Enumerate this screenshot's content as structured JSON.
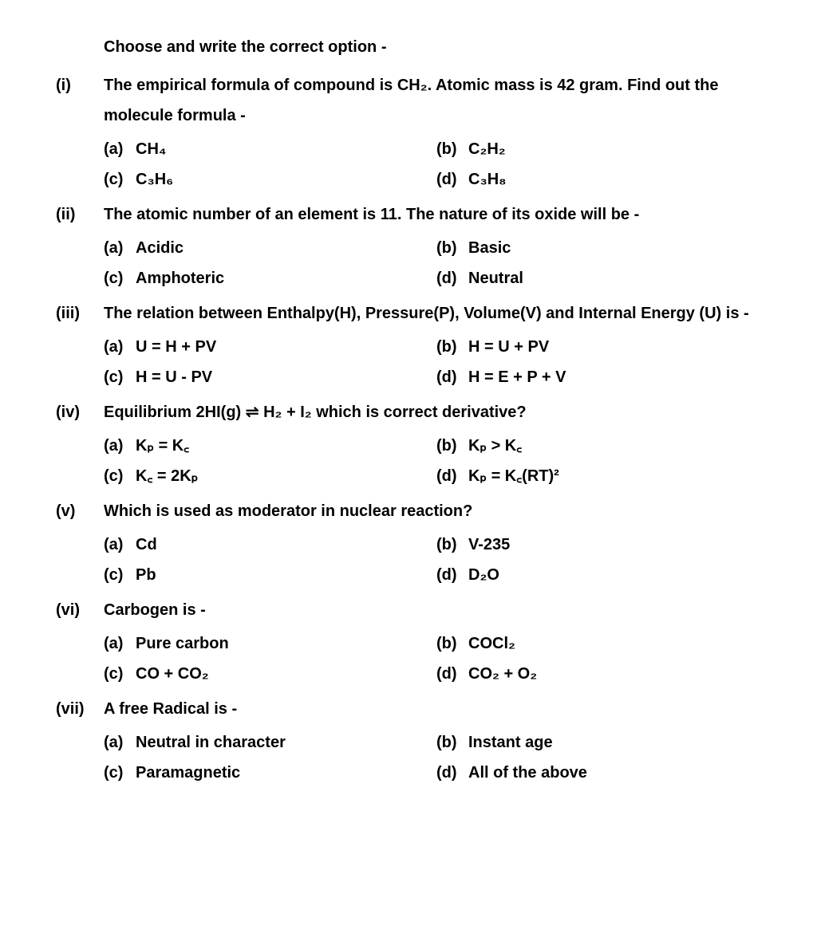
{
  "heading": "Choose and write the correct option -",
  "questions": [
    {
      "num": "(i)",
      "text": "The empirical formula of compound is CH₂. Atomic mass is 42 gram. Find out the molecule formula -",
      "opts": {
        "a": "CH₄",
        "b": "C₂H₂",
        "c": "C₃H₆",
        "d": "C₃H₈"
      }
    },
    {
      "num": "(ii)",
      "text": "The atomic number of an element is 11. The nature of its oxide will be -",
      "opts": {
        "a": "Acidic",
        "b": "Basic",
        "c": "Amphoteric",
        "d": "Neutral"
      }
    },
    {
      "num": "(iii)",
      "text": "The relation between Enthalpy(H), Pressure(P), Volume(V) and Internal Energy (U) is -",
      "opts": {
        "a": "U = H + PV",
        "b": "H = U + PV",
        "c": "H = U - PV",
        "d": "H = E + P + V"
      }
    },
    {
      "num": "(iv)",
      "text": "Equilibrium 2HI(g) ⇌ H₂ + I₂ which is correct derivative?",
      "opts": {
        "a": "Kₚ = K꜀",
        "b": "Kₚ > K꜀",
        "c": "K꜀ = 2Kₚ",
        "d": "Kₚ = K꜀(RT)²"
      }
    },
    {
      "num": "(v)",
      "text": "Which is used as moderator in nuclear reaction?",
      "opts": {
        "a": "Cd",
        "b": "V-235",
        "c": "Pb",
        "d": "D₂O"
      }
    },
    {
      "num": "(vi)",
      "text": "Carbogen is -",
      "opts": {
        "a": "Pure carbon",
        "b": "COCl₂",
        "c": "CO + CO₂",
        "d": "CO₂ + O₂"
      }
    },
    {
      "num": "(vii)",
      "text": "A free Radical is -",
      "opts": {
        "a": "Neutral in character",
        "b": "Instant age",
        "c": "Paramagnetic",
        "d": "All of the above"
      }
    }
  ]
}
